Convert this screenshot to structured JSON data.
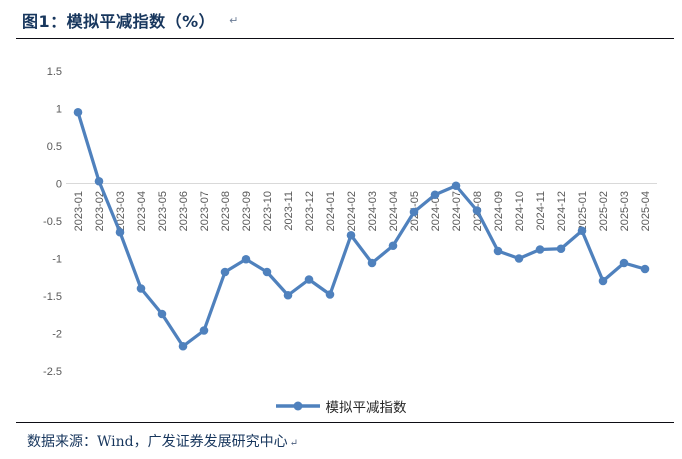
{
  "header": {
    "title": "图1：模拟平减指数（%）",
    "paragraph_mark": "↵"
  },
  "footer": {
    "source": "数据来源：Wind，广发证券发展研究中心",
    "paragraph_mark": "↵"
  },
  "colors": {
    "line": "#4f81bd",
    "title_text": "#17365d",
    "axis_text": "#595959",
    "gridline": "#d9d9d9",
    "divider": "#0d0d14"
  },
  "chart_data": {
    "type": "line",
    "title": "模拟平减指数（%）",
    "legend_position": "bottom",
    "grid": "zero-line-only",
    "x_label_rotation": -90,
    "ylim": [
      -2.5,
      1.5
    ],
    "ytick_labels": [
      "1.5",
      "1",
      "0.5",
      "0",
      "-0.5",
      "-1",
      "-1.5",
      "-2",
      "-2.5"
    ],
    "categories": [
      "2023-01",
      "2023-02",
      "2023-03",
      "2023-04",
      "2023-05",
      "2023-06",
      "2023-07",
      "2023-08",
      "2023-09",
      "2023-10",
      "2023-11",
      "2023-12",
      "2024-01",
      "2024-02",
      "2024-03",
      "2024-04",
      "2024-05",
      "2024-06",
      "2024-07",
      "2024-08",
      "2024-09",
      "2024-10",
      "2024-11",
      "2024-12",
      "2025-01",
      "2025-02",
      "2025-03",
      "2025-04"
    ],
    "series": [
      {
        "name": "模拟平减指数",
        "values": [
          0.95,
          0.03,
          -0.65,
          -1.4,
          -1.74,
          -2.17,
          -1.96,
          -1.18,
          -1.01,
          -1.18,
          -1.49,
          -1.28,
          -1.48,
          -0.69,
          -1.06,
          -0.83,
          -0.38,
          -0.15,
          -0.03,
          -0.36,
          -0.9,
          -1.0,
          -0.88,
          -0.87,
          -0.63,
          -1.3,
          -1.06,
          -1.14
        ]
      }
    ]
  }
}
